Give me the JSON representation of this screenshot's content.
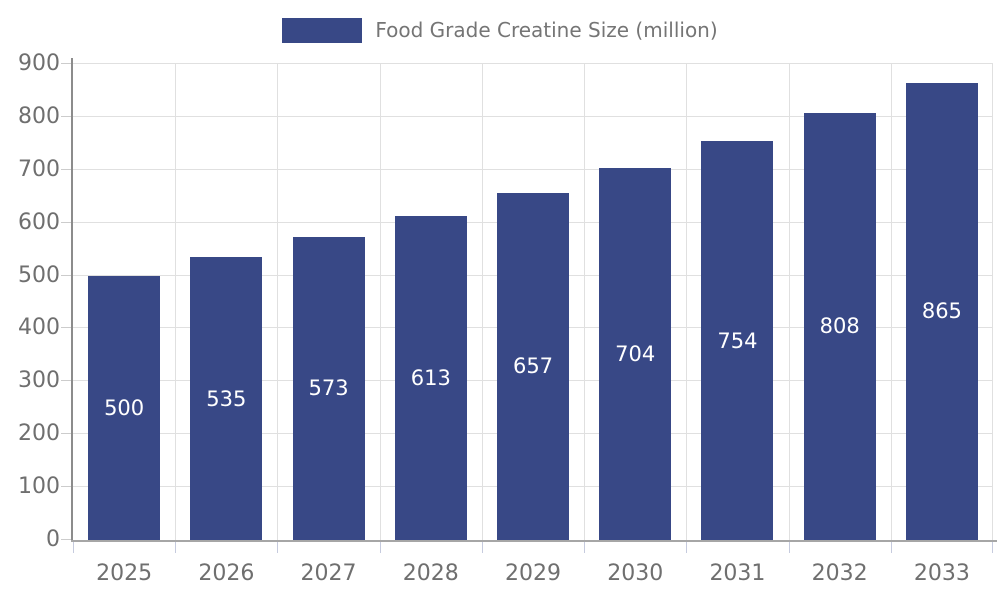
{
  "legend": {
    "label": "Food Grade Creatine Size (million)"
  },
  "colors": {
    "bar": "#384886",
    "bar_label": "#ffffff",
    "grid": "#e0e0e0",
    "axis_y": "#8c8c8c",
    "axis_x": "#a6a6a6",
    "tick_x": "#c6cbde",
    "tick_y": "#cccccc",
    "tick_label": "#6f6f6f",
    "legend_text": "#757575"
  },
  "chart_data": {
    "type": "bar",
    "title": "",
    "categories": [
      "2025",
      "2026",
      "2027",
      "2028",
      "2029",
      "2030",
      "2031",
      "2032",
      "2033"
    ],
    "values": [
      500,
      535,
      573,
      613,
      657,
      704,
      754,
      808,
      865
    ],
    "series_name": "Food Grade Creatine Size (million)",
    "xlabel": "",
    "ylabel": "",
    "ylim": [
      0,
      900
    ],
    "yticks": [
      0,
      100,
      200,
      300,
      400,
      500,
      600,
      700,
      800,
      900
    ],
    "grid": true,
    "legend_position": "top",
    "bar_value_labels": "inside-center"
  }
}
